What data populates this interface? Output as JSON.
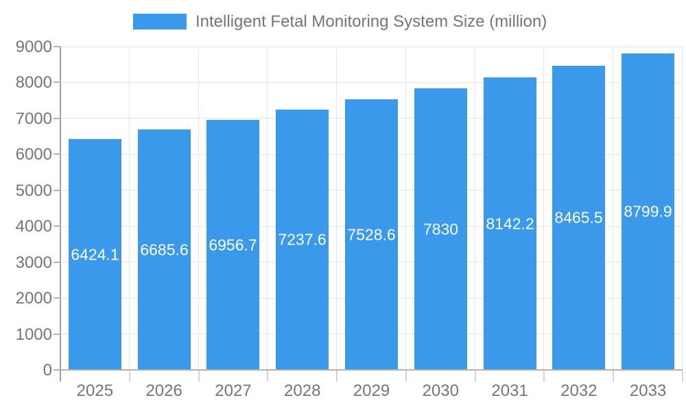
{
  "legend": {
    "label": "Intelligent Fetal Monitoring System Size (million)"
  },
  "colors": {
    "bar": "#3b99ec",
    "axis_text": "#757575",
    "bar_label_text": "#ffffff",
    "gridline": "#e6e6e6",
    "y_axis_line": "#9e9e9e",
    "baseline": "#b3b3b3",
    "background": "#ffffff"
  },
  "chart_data": {
    "type": "bar",
    "title": "Intelligent Fetal Monitoring System Size (million)",
    "categories": [
      "2025",
      "2026",
      "2027",
      "2028",
      "2029",
      "2030",
      "2031",
      "2032",
      "2033"
    ],
    "series": [
      {
        "name": "Intelligent Fetal Monitoring System Size (million)",
        "values": [
          6424.1,
          6685.6,
          6956.7,
          7237.6,
          7528.6,
          7830,
          8142.2,
          8465.5,
          8799.9
        ],
        "color": "#3b99ec"
      }
    ],
    "value_labels": [
      "6424.1",
      "6685.6",
      "6956.7",
      "7237.6",
      "7528.6",
      "7830",
      "8142.2",
      "8465.5",
      "8799.9"
    ],
    "xlabel": "",
    "ylabel": "",
    "ylim": [
      0,
      9000
    ],
    "yticks": [
      0,
      1000,
      2000,
      3000,
      4000,
      5000,
      6000,
      7000,
      8000,
      9000
    ],
    "grid": true,
    "legend_position": "top",
    "bar_labels_inside": true
  }
}
